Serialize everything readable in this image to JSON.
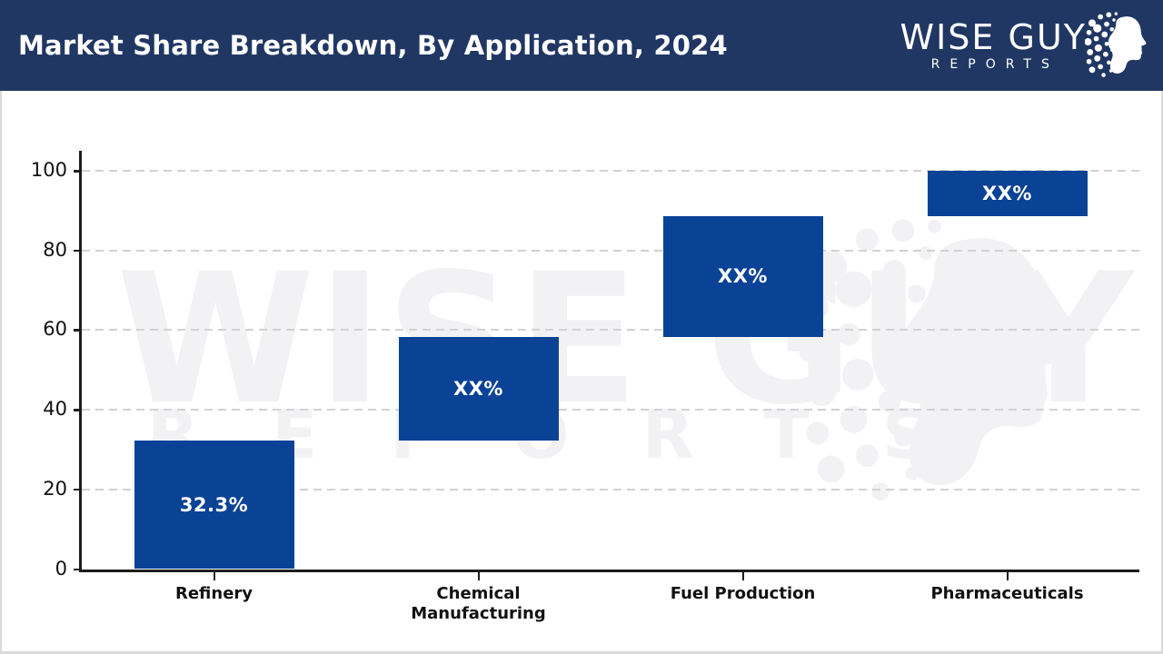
{
  "header": {
    "title": "Market Share Breakdown, By Application, 2024",
    "bg_color": "#203763",
    "logo": {
      "wordmark": "WISE GUY",
      "subtext": "REPORTS",
      "icon": "wiseguy-head-icon"
    }
  },
  "watermark": {
    "wordmark": "WISE GUY",
    "subtext": "REPORTS",
    "icon": "wiseguy-head-icon"
  },
  "chart_data": {
    "type": "bar",
    "variant": "waterfall",
    "title": "Market Share Breakdown, By Application, 2024",
    "categories": [
      "Refinery",
      "Chemical Manufacturing",
      "Fuel Production",
      "Pharmaceuticals"
    ],
    "segments": [
      {
        "category": "Refinery",
        "start": 0,
        "end": 32.3,
        "label": "32.3%"
      },
      {
        "category": "Chemical Manufacturing",
        "start": 32.3,
        "end": 58.3,
        "label": "XX%"
      },
      {
        "category": "Fuel Production",
        "start": 58.3,
        "end": 88.7,
        "label": "XX%"
      },
      {
        "category": "Pharmaceuticals",
        "start": 88.7,
        "end": 100,
        "label": "XX%"
      }
    ],
    "xlabel": "",
    "ylabel": "",
    "ylim": [
      0,
      105
    ],
    "yticks": [
      0,
      20,
      40,
      60,
      80,
      100
    ],
    "grid": {
      "axis": "y",
      "style": "dashed",
      "color": "#d2d2d2"
    },
    "legend": "none",
    "bar_color": "#0a4296",
    "bar_label_color": "#ffffff",
    "axis_color": "#1c1c1c"
  }
}
